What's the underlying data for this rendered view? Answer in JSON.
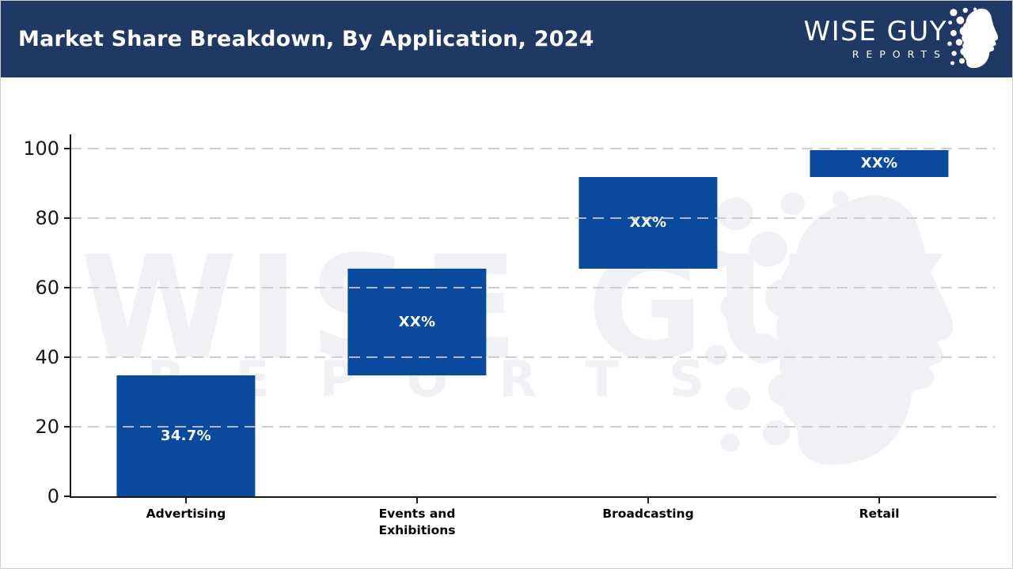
{
  "header": {
    "title": "Market Share Breakdown, By Application, 2024",
    "brand": {
      "name": "WISE GUY",
      "sub": "REPORTS"
    }
  },
  "watermark": {
    "name": "WISE GUY",
    "sub": "REPORTS"
  },
  "chart_data": {
    "type": "bar",
    "subtype": "waterfall",
    "title": "Market Share Breakdown, By Application, 2024",
    "categories": [
      "Advertising",
      "Events and Exhibitions",
      "Broadcasting",
      "Retail"
    ],
    "bars": [
      {
        "category": "Advertising",
        "start": 0,
        "end": 34.7,
        "label": "34.7%"
      },
      {
        "category": "Events and Exhibitions",
        "start": 34.8,
        "end": 65.5,
        "label": "XX%"
      },
      {
        "category": "Broadcasting",
        "start": 65.5,
        "end": 91.8,
        "label": "XX%"
      },
      {
        "category": "Retail",
        "start": 91.8,
        "end": 99.6,
        "label": "XX%"
      }
    ],
    "yticks": [
      0,
      20,
      40,
      60,
      80,
      100
    ],
    "ylim": [
      0,
      104
    ],
    "xlabel": "",
    "ylabel": "",
    "grid": "dashed-horizontal-on-top",
    "bar_color": "#0a4a9e",
    "bar_label_color": "#ffffff",
    "header_color": "#1f3864",
    "watermark_color": "#f0f1f4"
  }
}
